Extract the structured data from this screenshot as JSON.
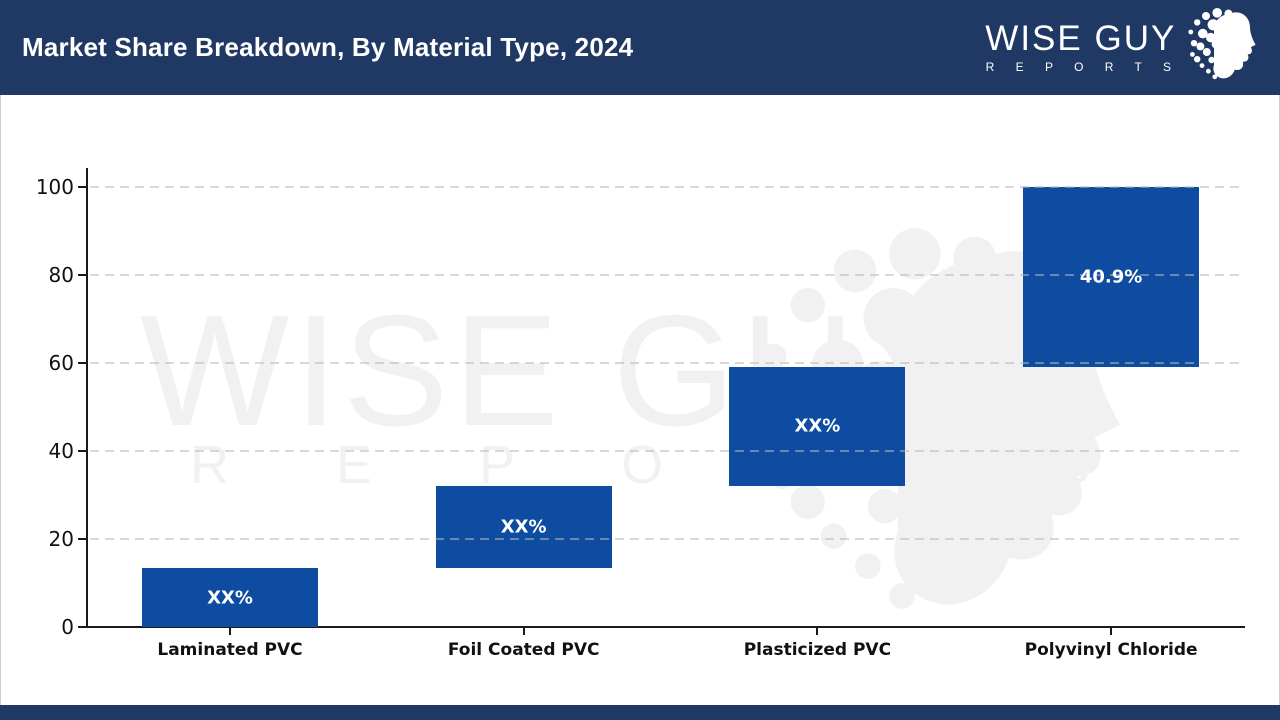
{
  "page": {
    "background": "#ffffff",
    "border_color": "#cccccc"
  },
  "header": {
    "background": "#1f3864",
    "title": "Market Share Breakdown, By Material Type, 2024",
    "title_color": "#ffffff",
    "logo": {
      "line1": "WISE GUY",
      "line2": "R E P O R T S",
      "face_icon": "dotted-head-profile"
    }
  },
  "watermark": {
    "line1": "WISE GUY",
    "line2": "R E P O R T S",
    "color": "#f1f1f1"
  },
  "footer": {
    "background": "#1f3864"
  },
  "chart_data": {
    "type": "bar",
    "variant": "waterfall",
    "title": "Market Share Breakdown, By Material Type, 2024",
    "categories": [
      "Laminated PVC",
      "Foil Coated PVC",
      "Plasticized PVC",
      "Polyvinyl Chloride"
    ],
    "segments": [
      {
        "category": "Laminated PVC",
        "start": 0,
        "end": 13.4,
        "value": 13.4,
        "value_label": "XX%"
      },
      {
        "category": "Foil Coated PVC",
        "start": 13.4,
        "end": 32.1,
        "value": 18.7,
        "value_label": "XX%"
      },
      {
        "category": "Plasticized PVC",
        "start": 32.1,
        "end": 59.1,
        "value": 27.0,
        "value_label": "XX%"
      },
      {
        "category": "Polyvinyl Chloride",
        "start": 59.1,
        "end": 100,
        "value": 40.9,
        "value_label": "40.9%"
      }
    ],
    "xlabel": "",
    "ylabel": "",
    "ylim": [
      0,
      104
    ],
    "yticks": [
      0,
      20,
      40,
      60,
      80,
      100
    ],
    "grid": true,
    "grid_style": "dashed-horizontal-over-bars",
    "legend": false,
    "bar_color": "#0d4ca0",
    "bar_label_color": "#ffffff",
    "axis_color": "#1a1a1a"
  }
}
